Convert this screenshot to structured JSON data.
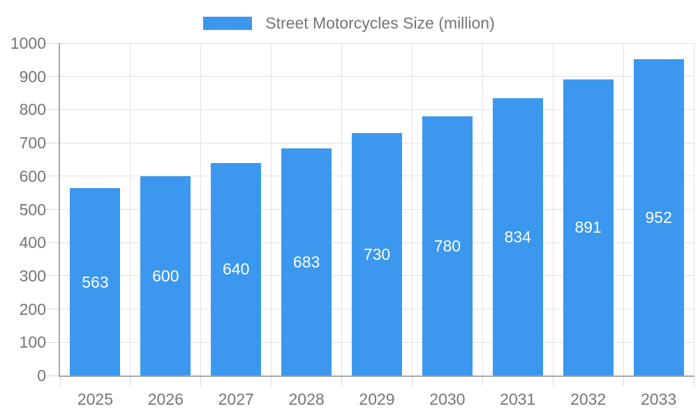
{
  "chart_data": {
    "type": "bar",
    "title": "Street Motorcycles Size (million)",
    "categories": [
      "2025",
      "2026",
      "2027",
      "2028",
      "2029",
      "2030",
      "2031",
      "2032",
      "2033"
    ],
    "values": [
      563,
      600,
      640,
      683,
      730,
      780,
      834,
      891,
      952
    ],
    "series": [
      {
        "name": "Street Motorcycles Size (million)",
        "values": [
          563,
          600,
          640,
          683,
          730,
          780,
          834,
          891,
          952
        ]
      }
    ],
    "xlabel": "",
    "ylabel": "",
    "ylim": [
      0,
      1000
    ],
    "y_tick_step": 100,
    "y_tick_labels": [
      "0",
      "100",
      "200",
      "300",
      "400",
      "500",
      "600",
      "700",
      "800",
      "900",
      "1000"
    ],
    "grid": true,
    "legend_position": "top-center",
    "value_labels_position": "inside-middle"
  },
  "legend": {
    "label": "Street Motorcycles Size (million)",
    "swatch_color": "#3b98ee"
  },
  "colors": {
    "bar": "#3b98ee",
    "bar_label": "#ffffff",
    "axis_line": "#a6a6a6",
    "gridline": "#e2e2e2",
    "tick": "#d9d9d9",
    "axis_label": "#757575",
    "background": "#ffffff"
  }
}
